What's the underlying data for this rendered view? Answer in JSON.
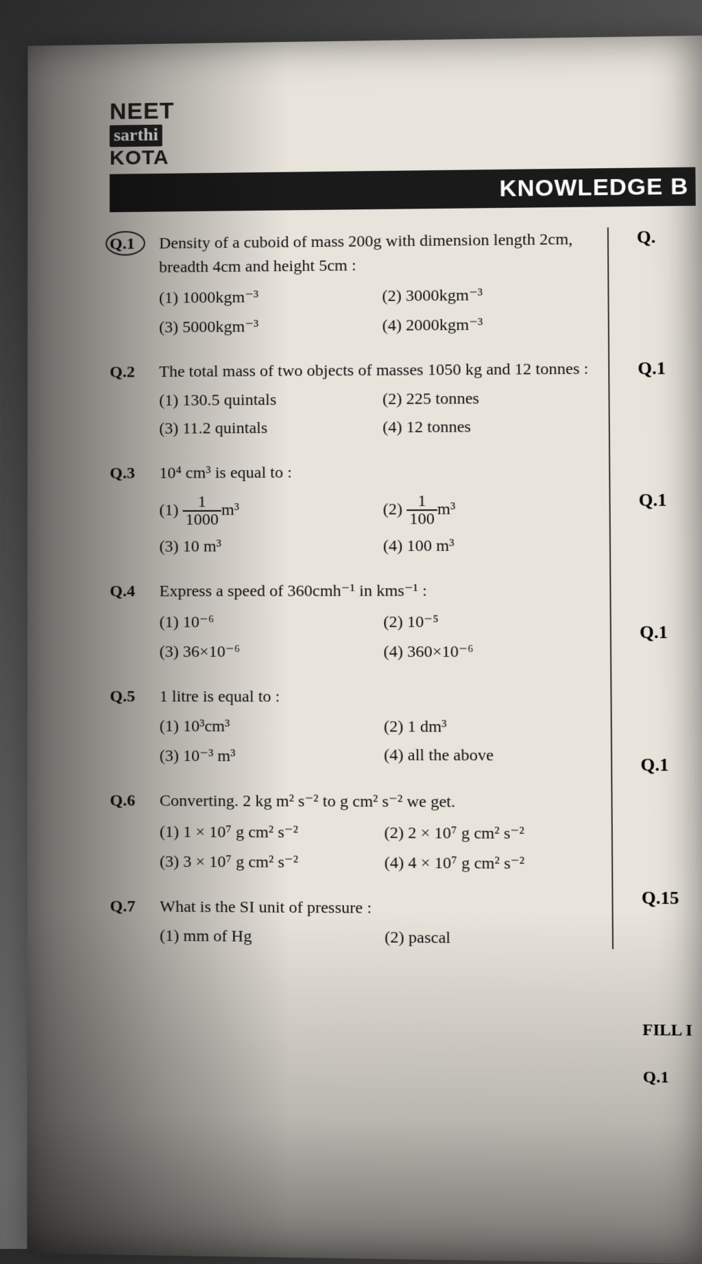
{
  "brand": {
    "line1": "NEET",
    "line2": "sarthi",
    "line3": "KOTA"
  },
  "banner": "KNOWLEDGE B",
  "questions": [
    {
      "num": "Q.1",
      "circled": true,
      "text": "Density of a cuboid of mass 200g with dimension length 2cm, breadth 4cm and height 5cm :",
      "opts": [
        "(1) 1000kgm⁻³",
        "(2) 3000kgm⁻³",
        "(3) 5000kgm⁻³",
        "(4) 2000kgm⁻³"
      ]
    },
    {
      "num": "Q.2",
      "text": "The total mass of two objects of masses 1050 kg and 12 tonnes :",
      "opts": [
        "(1) 130.5 quintals",
        "(2) 225 tonnes",
        "(3) 11.2 quintals",
        "(4) 12 tonnes"
      ]
    },
    {
      "num": "Q.3",
      "text": "10⁴ cm³ is equal to :",
      "opts_frac": [
        {
          "label": "(1)",
          "num": "1",
          "den": "1000",
          "suffix": "m³"
        },
        {
          "label": "(2)",
          "num": "1",
          "den": "100",
          "suffix": "m³"
        }
      ],
      "opts_plain": [
        "(3) 10 m³",
        "(4) 100 m³"
      ]
    },
    {
      "num": "Q.4",
      "text": "Express a speed of 360cmh⁻¹ in kms⁻¹ :",
      "opts": [
        "(1) 10⁻⁶",
        "(2) 10⁻⁵",
        "(3) 36×10⁻⁶",
        "(4) 360×10⁻⁶"
      ]
    },
    {
      "num": "Q.5",
      "text": "1 litre is equal to :",
      "opts": [
        "(1) 10³cm³",
        "(2) 1 dm³",
        "(3) 10⁻³ m³",
        "(4) all the above"
      ]
    },
    {
      "num": "Q.6",
      "text": "Converting. 2 kg m² s⁻² to g cm² s⁻² we get.",
      "opts": [
        "(1) 1 × 10⁷ g cm² s⁻²",
        "(2) 2 × 10⁷ g cm² s⁻²",
        "(3) 3 × 10⁷ g cm² s⁻²",
        "(4) 4 × 10⁷ g cm² s⁻²"
      ]
    },
    {
      "num": "Q.7",
      "text": "What is the SI unit of pressure :",
      "opts": [
        "(1) mm of Hg",
        "(2) pascal"
      ]
    }
  ],
  "side": {
    "q_labels": [
      "Q.",
      "Q.1",
      "Q.1",
      "Q.1",
      "Q.1",
      "Q.15"
    ],
    "fill": "FILL I",
    "q1": "Q.1"
  },
  "colors": {
    "page_bg": "#e8e4dc",
    "text": "#111111",
    "banner_bg": "#1a1a1a",
    "banner_text": "#ffffff"
  }
}
